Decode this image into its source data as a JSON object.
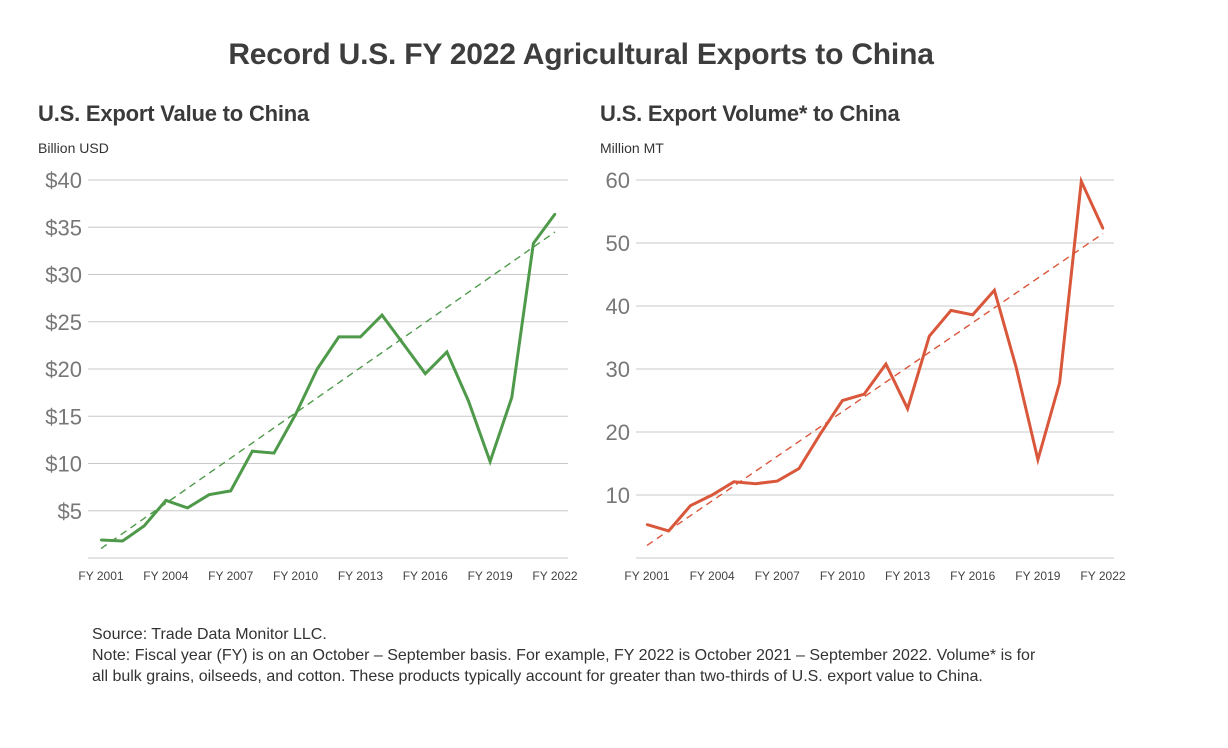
{
  "title": "Record U.S. FY 2022 Agricultural Exports to China",
  "footnote": {
    "source": "Source: Trade Data Monitor LLC.",
    "note": "Note: Fiscal year (FY) is on an October – September basis. For example, FY 2022 is October 2021 – September 2022. Volume* is for all bulk grains, oilseeds, and cotton. These products typically account for greater than two-thirds of U.S. export value to China."
  },
  "colors": {
    "value_line": "#4e9a4a",
    "volume_line": "#d9573a",
    "grid": "#c8c8c8",
    "axis_text": "#777777"
  },
  "chart_data": [
    {
      "type": "line",
      "title": "U.S. Export Value to China",
      "unit_label": "Billion USD",
      "x": [
        "FY 2001",
        "FY 2002",
        "FY 2003",
        "FY 2004",
        "FY 2005",
        "FY 2006",
        "FY 2007",
        "FY 2008",
        "FY 2009",
        "FY 2010",
        "FY 2011",
        "FY 2012",
        "FY 2013",
        "FY 2014",
        "FY 2015",
        "FY 2016",
        "FY 2017",
        "FY 2018",
        "FY 2019",
        "FY 2020",
        "FY 2021",
        "FY 2022"
      ],
      "x_tick_labels": [
        "FY 2001",
        "FY 2004",
        "FY 2007",
        "FY 2010",
        "FY 2013",
        "FY 2016",
        "FY 2019",
        "FY 2022"
      ],
      "series": [
        {
          "values": [
            1.9,
            1.8,
            3.4,
            6.1,
            5.3,
            6.7,
            7.1,
            11.3,
            11.1,
            15.2,
            20.0,
            23.4,
            23.4,
            25.7,
            22.6,
            19.5,
            21.8,
            16.6,
            10.2,
            17.0,
            33.3,
            36.4
          ]
        }
      ],
      "trendline": {
        "style": "dashed",
        "start": 1.0,
        "end": 34.5
      },
      "yticks": [
        5,
        10,
        15,
        20,
        25,
        30,
        35,
        40
      ],
      "ytick_labels": [
        "$5",
        "$10",
        "$15",
        "$20",
        "$25",
        "$30",
        "$35",
        "$40"
      ],
      "ylim": [
        0,
        40
      ],
      "grid": true
    },
    {
      "type": "line",
      "title": "U.S. Export Volume* to China",
      "unit_label": "Million MT",
      "x": [
        "FY 2001",
        "FY 2002",
        "FY 2003",
        "FY 2004",
        "FY 2005",
        "FY 2006",
        "FY 2007",
        "FY 2008",
        "FY 2009",
        "FY 2010",
        "FY 2011",
        "FY 2012",
        "FY 2013",
        "FY 2014",
        "FY 2015",
        "FY 2016",
        "FY 2017",
        "FY 2018",
        "FY 2019",
        "FY 2020",
        "FY 2021",
        "FY 2022"
      ],
      "x_tick_labels": [
        "FY 2001",
        "FY 2004",
        "FY 2007",
        "FY 2010",
        "FY 2013",
        "FY 2016",
        "FY 2019",
        "FY 2022"
      ],
      "series": [
        {
          "values": [
            5.3,
            4.3,
            8.3,
            10.0,
            12.1,
            11.8,
            12.2,
            14.2,
            19.8,
            25.0,
            26.0,
            30.8,
            23.7,
            35.2,
            39.3,
            38.6,
            42.5,
            30.3,
            15.6,
            27.8,
            59.8,
            52.3
          ]
        }
      ],
      "trendline": {
        "style": "dashed",
        "start": 2.0,
        "end": 51.5
      },
      "yticks": [
        10,
        20,
        30,
        40,
        50,
        60
      ],
      "ytick_labels": [
        "10",
        "20",
        "30",
        "40",
        "50",
        "60"
      ],
      "ylim": [
        0,
        60
      ],
      "grid": true
    }
  ]
}
